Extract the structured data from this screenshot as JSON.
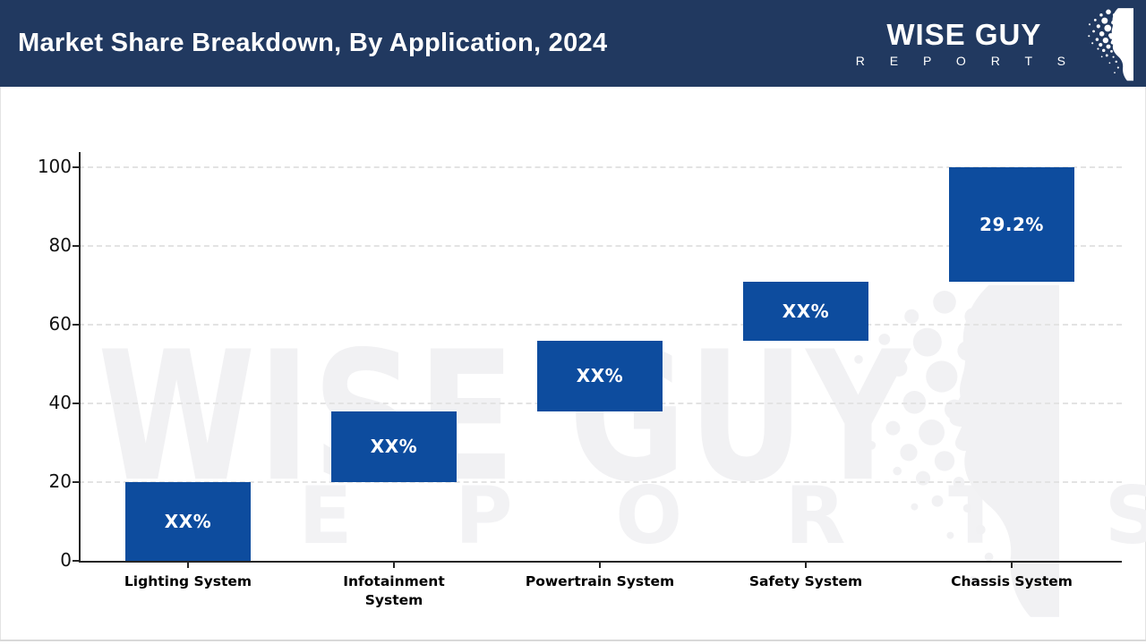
{
  "header": {
    "title": "Market Share Breakdown, By Application, 2024",
    "background_color": "#213960",
    "brand": {
      "name": "WISE GUY",
      "sub": "R E P O R T S"
    }
  },
  "watermark": {
    "line1": "WISE GUY",
    "line2": "R E P O R T S"
  },
  "chart_data": {
    "type": "bar",
    "subtype": "floating-waterfall",
    "title": "Market Share Breakdown, By Application, 2024",
    "categories": [
      "Lighting System",
      "Infotainment\nSystem",
      "Powertrain System",
      "Safety System",
      "Chassis System"
    ],
    "segments": [
      {
        "category": "Lighting System",
        "start": 0,
        "end": 20,
        "label": "XX%"
      },
      {
        "category": "Infotainment System",
        "start": 20,
        "end": 38,
        "label": "XX%"
      },
      {
        "category": "Powertrain System",
        "start": 38,
        "end": 56,
        "label": "XX%"
      },
      {
        "category": "Safety System",
        "start": 56,
        "end": 70.8,
        "label": "XX%"
      },
      {
        "category": "Chassis System",
        "start": 70.8,
        "end": 100,
        "label": "29.2%"
      }
    ],
    "yticks": [
      0,
      20,
      40,
      60,
      80,
      100
    ],
    "ylim": [
      0,
      100
    ],
    "xlabel": "",
    "ylabel": "",
    "grid": "horizontal-dashed",
    "legend": "none",
    "bar_color": "#0d4c9e"
  }
}
